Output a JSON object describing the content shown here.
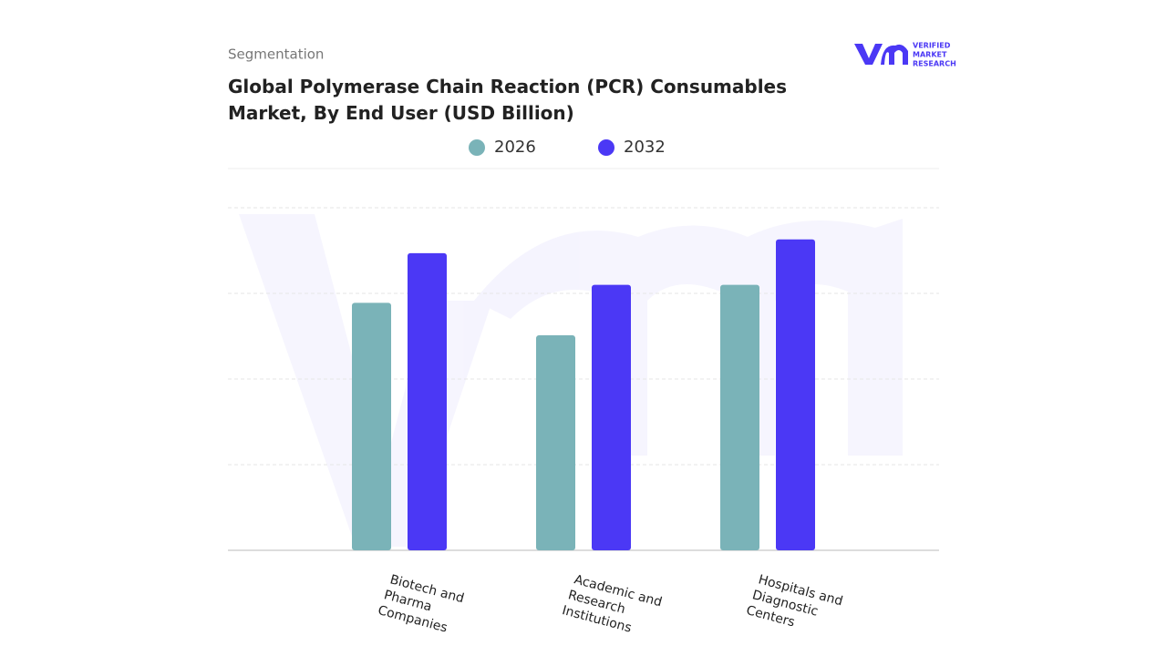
{
  "chart_data": {
    "type": "bar",
    "subtitle": "Segmentation",
    "title": "Global Polymerase Chain Reaction (PCR) Consumables Market, By End User (USD Billion)",
    "logo": [
      "VERIFIED",
      "MARKET",
      "RESEARCH"
    ],
    "categories": [
      "Biotech and Pharma Companies",
      "Academic and Research Institutions",
      "Hospitals and Diagnostic Centers"
    ],
    "series": [
      {
        "name": "2026",
        "color": "#7ab3b8",
        "values": [
          2.89,
          2.51,
          3.1
        ]
      },
      {
        "name": "2032",
        "color": "#4b38f5",
        "values": [
          3.47,
          3.1,
          3.63
        ]
      }
    ],
    "ylim": [
      0,
      4
    ],
    "grid": true
  }
}
